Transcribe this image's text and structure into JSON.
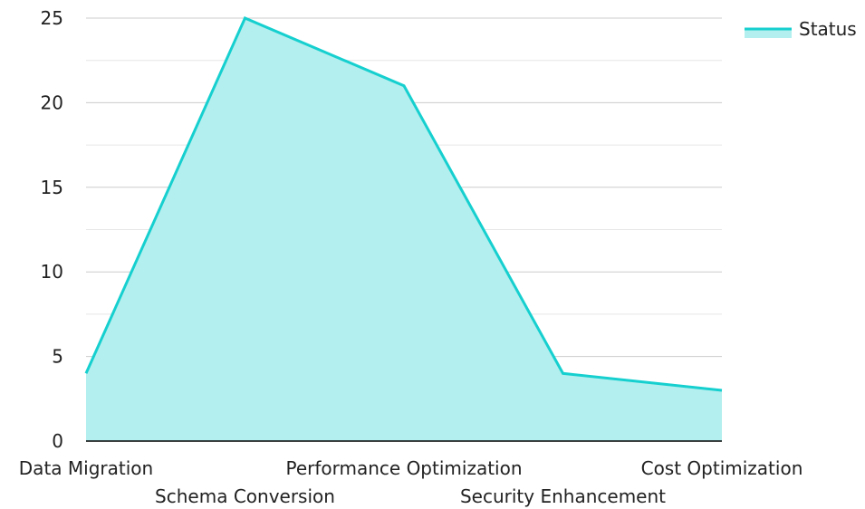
{
  "chart_data": {
    "type": "area",
    "categories": [
      "Data Migration",
      "Schema Conversion",
      "Performance Optimization",
      "Security Enhancement",
      "Cost Optimization"
    ],
    "series": [
      {
        "name": "Status",
        "values": [
          4,
          25,
          21,
          4,
          3
        ]
      }
    ],
    "ylim": [
      0,
      25
    ],
    "yticks": [
      0,
      5,
      10,
      15,
      20,
      25
    ],
    "grid": true,
    "legend_position": "top-right",
    "colors": {
      "line": "#16cfcf",
      "fill": "#b3efee",
      "grid": "#cccccc",
      "minor_grid": "#e6e6e6",
      "axis": "#000000"
    }
  }
}
